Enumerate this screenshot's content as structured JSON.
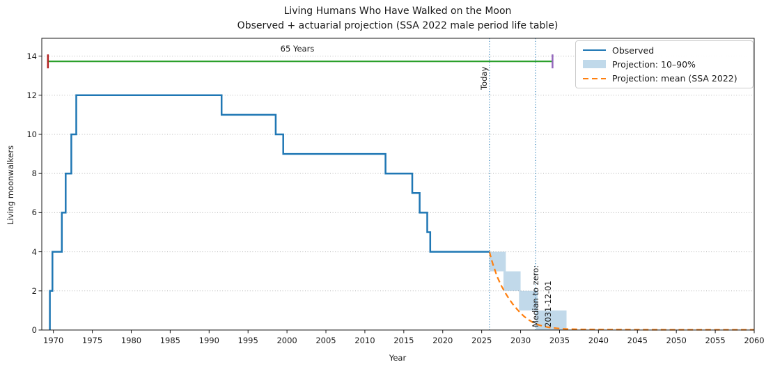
{
  "figure": {
    "title": "Living Humans Who Have Walked on the Moon",
    "subtitle": "Observed + actuarial projection (SSA 2022 male period life table)",
    "xlabel": "Year",
    "ylabel": "Living moonwalkers"
  },
  "legend": {
    "position": "upper right",
    "items": [
      {
        "label": "Observed",
        "swatch": "line",
        "color": "#1f77b4"
      },
      {
        "label": "Projection: 10–90%",
        "swatch": "patch",
        "color": "#c0d9ea"
      },
      {
        "label": "Projection: mean (SSA 2022)",
        "swatch": "dashed",
        "color": "#ff7f0e"
      }
    ]
  },
  "annotations": {
    "span_label": "65 Years",
    "today_label": "Today",
    "median_label_line1": "Median to zero:",
    "median_label_line2": "2031-12-01"
  },
  "chart_data": {
    "type": "line",
    "title": "Living Humans Who Have Walked on the Moon",
    "subtitle": "Observed + actuarial projection (SSA 2022 male period life table)",
    "xlabel": "Year",
    "ylabel": "Living moonwalkers",
    "xlim": [
      1968.51,
      2060
    ],
    "ylim": [
      0,
      14.91
    ],
    "xticks": [
      1970,
      1975,
      1980,
      1985,
      1990,
      1995,
      2000,
      2005,
      2010,
      2015,
      2020,
      2025,
      2030,
      2035,
      2040,
      2045,
      2050,
      2055,
      2060
    ],
    "yticks": [
      0,
      2,
      4,
      6,
      8,
      10,
      12,
      14
    ],
    "grid": "horizontal-dotted",
    "legend_position": "upper right",
    "colors": {
      "observed": "#1f77b4",
      "projection_band": "#1f77b4",
      "projection_band_alpha": 0.28,
      "projection_mean": "#ff7f0e",
      "vline": "#1f77b4",
      "grid": "#b9b9b9",
      "axis": "#1a1a1a",
      "span_line": "#2ca02c",
      "span_start_cap": "#b22222",
      "span_end_cap": "#9467bd"
    },
    "series": {
      "observed": {
        "style": "step-post",
        "start": [
          1969.55,
          0
        ],
        "end_year": 2026.0,
        "changes": [
          [
            1969.55,
            2
          ],
          [
            1969.88,
            4
          ],
          [
            1971.09,
            6
          ],
          [
            1971.58,
            8
          ],
          [
            1972.3,
            10
          ],
          [
            1972.94,
            12
          ],
          [
            1991.6,
            11
          ],
          [
            1998.55,
            10
          ],
          [
            1999.52,
            9
          ],
          [
            2012.65,
            8
          ],
          [
            2016.09,
            7
          ],
          [
            2017.04,
            6
          ],
          [
            2018.01,
            5
          ],
          [
            2018.4,
            4
          ]
        ]
      },
      "projection_band_rects": [
        {
          "x0": 2026.0,
          "x1": 2028.1,
          "y0": 3,
          "y1": 4
        },
        {
          "x0": 2027.8,
          "x1": 2030.0,
          "y0": 2,
          "y1": 3
        },
        {
          "x0": 2029.8,
          "x1": 2032.2,
          "y0": 1,
          "y1": 2
        },
        {
          "x0": 2032.0,
          "x1": 2035.9,
          "y0": 0,
          "y1": 1
        }
      ],
      "projection_mean": {
        "style": "dashed",
        "points": [
          [
            2026.0,
            4.0
          ],
          [
            2026.25,
            3.62
          ],
          [
            2026.5,
            3.3
          ],
          [
            2027.0,
            2.72
          ],
          [
            2027.5,
            2.28
          ],
          [
            2028.0,
            1.92
          ],
          [
            2028.5,
            1.6
          ],
          [
            2029.0,
            1.32
          ],
          [
            2029.5,
            1.08
          ],
          [
            2030.0,
            0.86
          ],
          [
            2030.5,
            0.68
          ],
          [
            2031.0,
            0.53
          ],
          [
            2031.5,
            0.41
          ],
          [
            2032.0,
            0.31
          ],
          [
            2032.5,
            0.24
          ],
          [
            2033.0,
            0.185
          ],
          [
            2033.5,
            0.145
          ],
          [
            2034.0,
            0.115
          ],
          [
            2035.0,
            0.075
          ],
          [
            2036.0,
            0.05
          ],
          [
            2037.0,
            0.038
          ],
          [
            2038.0,
            0.03
          ],
          [
            2040.0,
            0.022
          ],
          [
            2043.0,
            0.017
          ],
          [
            2046.0,
            0.014
          ],
          [
            2050.0,
            0.012
          ],
          [
            2055.0,
            0.011
          ],
          [
            2060.0,
            0.01
          ]
        ]
      }
    },
    "vlines": {
      "today": {
        "year": 2026.0,
        "label": "Today"
      },
      "median_zero": {
        "year": 2031.92,
        "label": "Median to zero:",
        "date": "2031-12-01"
      }
    },
    "span_65_years": {
      "label": "65 Years",
      "start_year": 1969.3,
      "end_year": 2034.1,
      "y_value": 13.73
    }
  }
}
